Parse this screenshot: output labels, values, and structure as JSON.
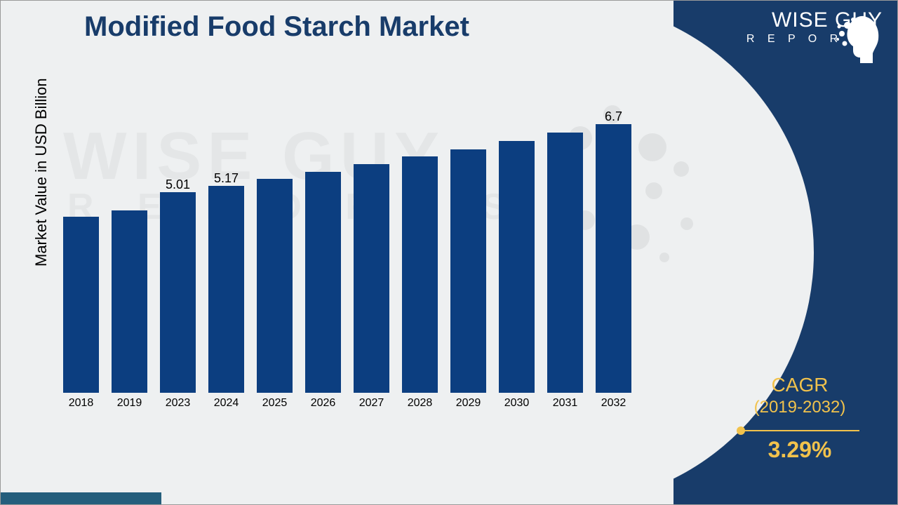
{
  "title": "Modified Food Starch Market",
  "logo": {
    "main": "WISE GUY",
    "sub": "R E P O R T S"
  },
  "y_axis_label": "Market Value in USD Billion",
  "watermark": {
    "main": "WISE GUY",
    "sub": "R E P O R T S"
  },
  "cagr": {
    "title": "CAGR",
    "period": "(2019-2032)",
    "value": "3.29%",
    "accent_color": "#f1c24c"
  },
  "chart": {
    "type": "bar",
    "bar_color": "#0c3e80",
    "background_color": "#eef0f1",
    "panel_color": "#183c6a",
    "ylim": [
      0,
      7.0
    ],
    "x_label_fontsize": 16,
    "value_label_fontsize": 18,
    "categories": [
      "2018",
      "2019",
      "2023",
      "2024",
      "2025",
      "2026",
      "2027",
      "2028",
      "2029",
      "2030",
      "2031",
      "2032"
    ],
    "values": [
      4.4,
      4.55,
      5.01,
      5.17,
      5.34,
      5.52,
      5.7,
      5.89,
      6.08,
      6.28,
      6.49,
      6.7
    ],
    "value_labels": [
      "",
      "",
      "5.01",
      "5.17",
      "",
      "",
      "",
      "",
      "",
      "",
      "",
      "6.7"
    ]
  }
}
